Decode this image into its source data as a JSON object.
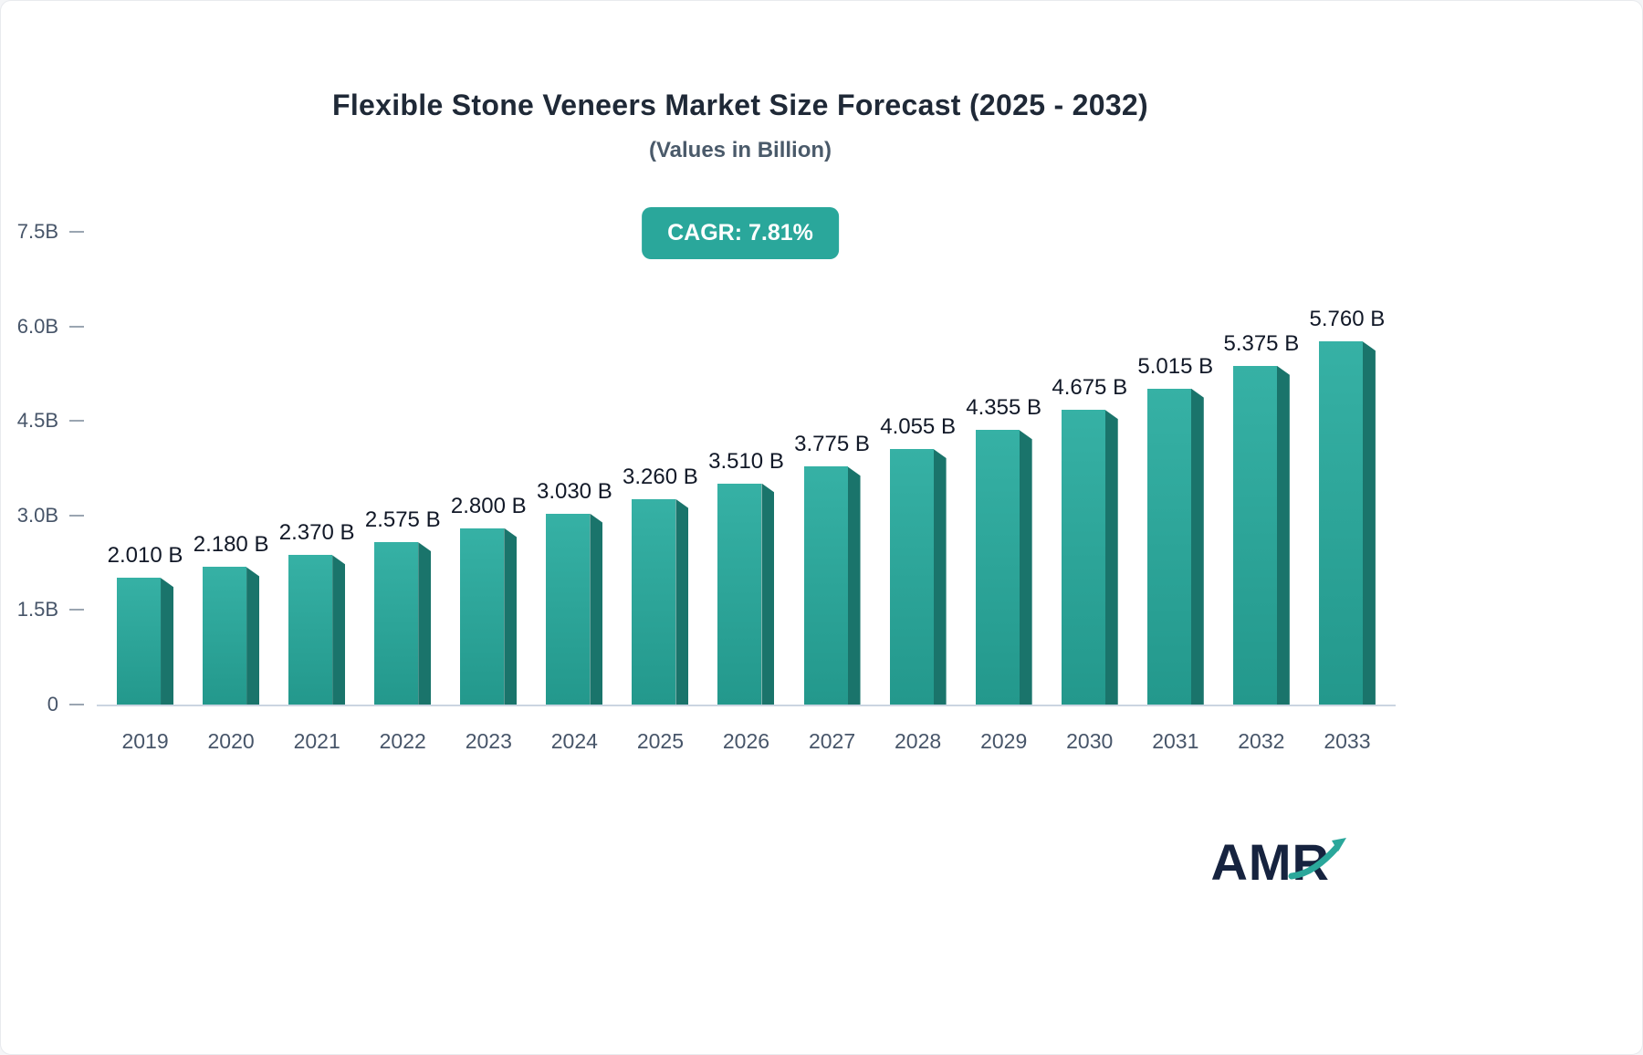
{
  "header": {
    "title": "Flexible Stone Veneers Market Size Forecast (2025 - 2032)",
    "subtitle": "(Values in Billion)",
    "cagr_badge": "CAGR: 7.81%"
  },
  "chart_data": {
    "type": "bar",
    "title": "Flexible Stone Veneers Market Size Forecast (2025 - 2032)",
    "subtitle": "(Values in Billion)",
    "cagr_percent": 7.81,
    "unit": "Billion",
    "categories": [
      "2019",
      "2020",
      "2021",
      "2022",
      "2023",
      "2024",
      "2025",
      "2026",
      "2027",
      "2028",
      "2029",
      "2030",
      "2031",
      "2032",
      "2033"
    ],
    "values": [
      2.01,
      2.18,
      2.37,
      2.575,
      2.8,
      3.03,
      3.26,
      3.51,
      3.775,
      4.055,
      4.355,
      4.675,
      5.015,
      5.375,
      5.76
    ],
    "value_labels": [
      "2.010 B",
      "2.180 B",
      "2.370 B",
      "2.575 B",
      "2.800 B",
      "3.030 B",
      "3.260 B",
      "3.510 B",
      "3.775 B",
      "4.055 B",
      "4.355 B",
      "4.675 B",
      "5.015 B",
      "5.375 B",
      "5.760 B"
    ],
    "xlabel": "",
    "ylabel": "",
    "ylim": [
      0,
      7.5
    ],
    "y_ticks": [
      {
        "label": "0",
        "value": 0
      },
      {
        "label": "1.5B",
        "value": 1.5
      },
      {
        "label": "3.0B",
        "value": 3.0
      },
      {
        "label": "4.5B",
        "value": 4.5
      },
      {
        "label": "6.0B",
        "value": 6.0
      },
      {
        "label": "7.5B",
        "value": 7.5
      }
    ],
    "grid": false,
    "legend": "none",
    "bar_labels_position": "above"
  },
  "branding": {
    "logo_text": "AMR"
  },
  "colors": {
    "accent": "#2AA79B",
    "bar_top": "#36B1A5",
    "bar_bottom": "#23988C",
    "bar_side": "#1A746B",
    "title_text": "#1F2937",
    "subtitle_text": "#4A5A6A",
    "axis_text": "#475569",
    "baseline": "#CBD5E1",
    "logo_navy": "#16233F"
  }
}
